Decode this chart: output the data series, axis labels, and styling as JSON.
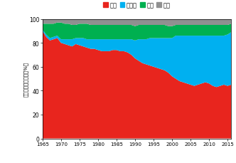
{
  "years": [
    1965,
    1966,
    1967,
    1968,
    1969,
    1970,
    1971,
    1972,
    1973,
    1974,
    1975,
    1976,
    1977,
    1978,
    1979,
    1980,
    1981,
    1982,
    1983,
    1984,
    1985,
    1986,
    1987,
    1988,
    1989,
    1990,
    1991,
    1992,
    1993,
    1994,
    1995,
    1996,
    1997,
    1998,
    1999,
    2000,
    2001,
    2002,
    2003,
    2004,
    2005,
    2006,
    2007,
    2008,
    2009,
    2010,
    2011,
    2012,
    2013,
    2014,
    2015,
    2016
  ],
  "oil": [
    90,
    85,
    82,
    83,
    84,
    80,
    79,
    78,
    77,
    79,
    78,
    77,
    76,
    75,
    75,
    74,
    73,
    73,
    73,
    74,
    74,
    73,
    73,
    72,
    70,
    67,
    65,
    63,
    62,
    61,
    60,
    59,
    58,
    57,
    55,
    52,
    50,
    48,
    47,
    46,
    45,
    44,
    45,
    46,
    47,
    46,
    44,
    43,
    44,
    45,
    44,
    45
  ],
  "gas": [
    1,
    2,
    2,
    2,
    2,
    3,
    4,
    5,
    6,
    5,
    6,
    7,
    7,
    8,
    8,
    9,
    10,
    10,
    10,
    9,
    9,
    10,
    10,
    11,
    13,
    15,
    18,
    20,
    21,
    23,
    24,
    25,
    26,
    27,
    29,
    32,
    36,
    38,
    39,
    40,
    41,
    42,
    41,
    40,
    39,
    40,
    42,
    43,
    42,
    41,
    43,
    44
  ],
  "hydro": [
    5,
    9,
    12,
    11,
    11,
    14,
    13,
    13,
    12,
    11,
    12,
    12,
    13,
    12,
    12,
    12,
    12,
    12,
    12,
    12,
    12,
    12,
    12,
    12,
    12,
    12,
    12,
    12,
    12,
    11,
    11,
    11,
    11,
    11,
    10,
    10,
    9,
    9,
    9,
    9,
    9,
    9,
    9,
    9,
    9,
    9,
    9,
    9,
    9,
    9,
    8,
    7
  ],
  "other": [
    4,
    4,
    4,
    4,
    3,
    3,
    4,
    4,
    5,
    5,
    4,
    4,
    4,
    5,
    5,
    5,
    5,
    5,
    5,
    5,
    5,
    5,
    5,
    5,
    5,
    6,
    5,
    5,
    5,
    5,
    5,
    5,
    5,
    5,
    6,
    6,
    5,
    5,
    5,
    5,
    5,
    5,
    5,
    5,
    5,
    5,
    5,
    5,
    5,
    5,
    5,
    4
  ],
  "oil_color": "#e8251e",
  "gas_color": "#00b0f0",
  "hydro_color": "#00b050",
  "other_color": "#909090",
  "xlabel_ticks": [
    1965,
    1970,
    1975,
    1980,
    1985,
    1990,
    1995,
    2000,
    2005,
    2010,
    2015
  ],
  "ylabel": "一次能源消费占比（%）",
  "ylim": [
    0,
    100
  ],
  "legend_labels": [
    "石油",
    "天然气",
    "水电",
    "其他"
  ],
  "background_color": "#ffffff"
}
